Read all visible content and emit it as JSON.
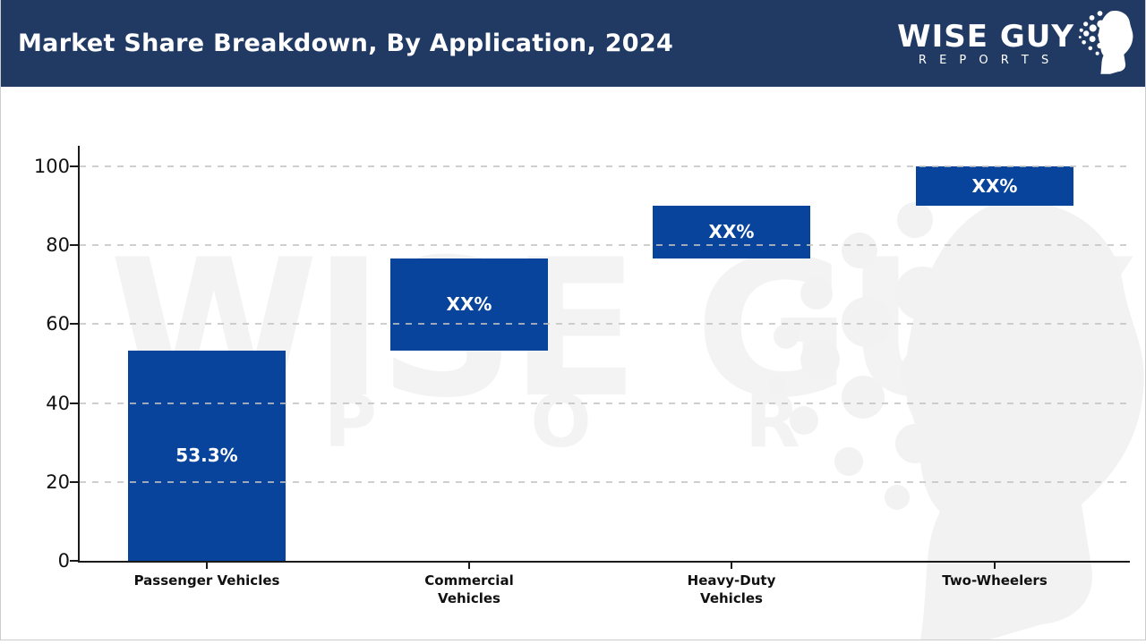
{
  "header": {
    "title": "Market Share Breakdown, By Application, 2024",
    "bg_color": "#213a64",
    "logo_line1": "WISE GUY",
    "logo_line2": "R E P O R T S"
  },
  "watermark": {
    "line1": "WISE GUY",
    "line2": "P O R T S"
  },
  "chart_data": {
    "type": "bar",
    "variant": "waterfall",
    "title": "Market Share Breakdown, By Application, 2024",
    "xlabel": "",
    "ylabel": "",
    "ylim": [
      0,
      105.5
    ],
    "yticks": [
      0,
      20,
      40,
      60,
      80,
      100
    ],
    "grid": "horizontal-dashed",
    "legend": "none",
    "bar_color": "#08449c",
    "bar_label_color": "#ffffff",
    "bars": [
      {
        "category": "Passenger Vehicles",
        "category_lines": [
          "Passenger Vehicles"
        ],
        "start": 0,
        "end": 53.3,
        "label": "53.3%",
        "estimated": false
      },
      {
        "category": "Commercial Vehicles",
        "category_lines": [
          "Commercial",
          "Vehicles"
        ],
        "start": 53.3,
        "end": 76.6,
        "label": "XX%",
        "estimated": true
      },
      {
        "category": "Heavy-Duty Vehicles",
        "category_lines": [
          "Heavy-Duty",
          "Vehicles"
        ],
        "start": 76.6,
        "end": 90.0,
        "label": "XX%",
        "estimated": true
      },
      {
        "category": "Two-Wheelers",
        "category_lines": [
          "Two-Wheelers"
        ],
        "start": 90.0,
        "end": 100.0,
        "label": "XX%",
        "estimated": true
      }
    ]
  }
}
